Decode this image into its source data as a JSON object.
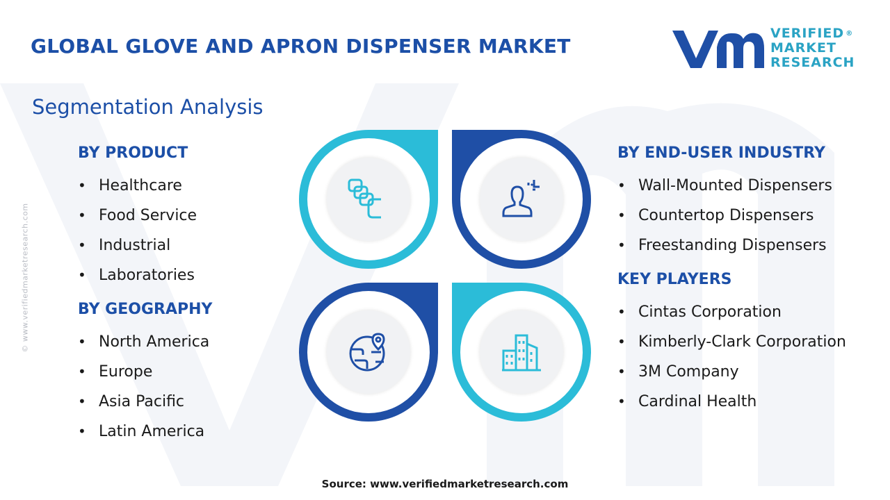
{
  "header": {
    "title": "GLOBAL GLOVE AND APRON DISPENSER MARKET",
    "subtitle": "Segmentation Analysis"
  },
  "logo": {
    "line1": "VERIFIED",
    "line2": "MARKET",
    "line3": "RESEARCH",
    "registered": "®"
  },
  "side_credit": "© www.verifiedmarketresearch.com",
  "segments": {
    "product": {
      "heading": "BY PRODUCT",
      "items": [
        "Healthcare",
        "Food Service",
        "Industrial",
        "Laboratories"
      ]
    },
    "geography": {
      "heading": "BY GEOGRAPHY",
      "items": [
        "North America",
        "Europe",
        "Asia Pacific",
        "Latin America"
      ]
    },
    "end_user": {
      "heading": "BY END-USER INDUSTRY",
      "items": [
        "Wall-Mounted Dispensers",
        "Countertop Dispensers",
        "Freestanding Dispensers"
      ]
    },
    "key_players": {
      "heading": "KEY PLAYERS",
      "items": [
        "Cintas Corporation",
        "Kimberly-Clark Corporation",
        "3M Company",
        "Cardinal Health"
      ]
    }
  },
  "quadrant_icons": [
    "stacked-boxes-icon",
    "user-profile-icon",
    "globe-location-icon",
    "buildings-icon"
  ],
  "colors": {
    "primary_blue": "#1c4fa7",
    "accent_cyan": "#2bbcd8",
    "ring_dark_blue": "#1f4fa6"
  },
  "footer": {
    "source": "Source: www.verifiedmarketresearch.com"
  }
}
